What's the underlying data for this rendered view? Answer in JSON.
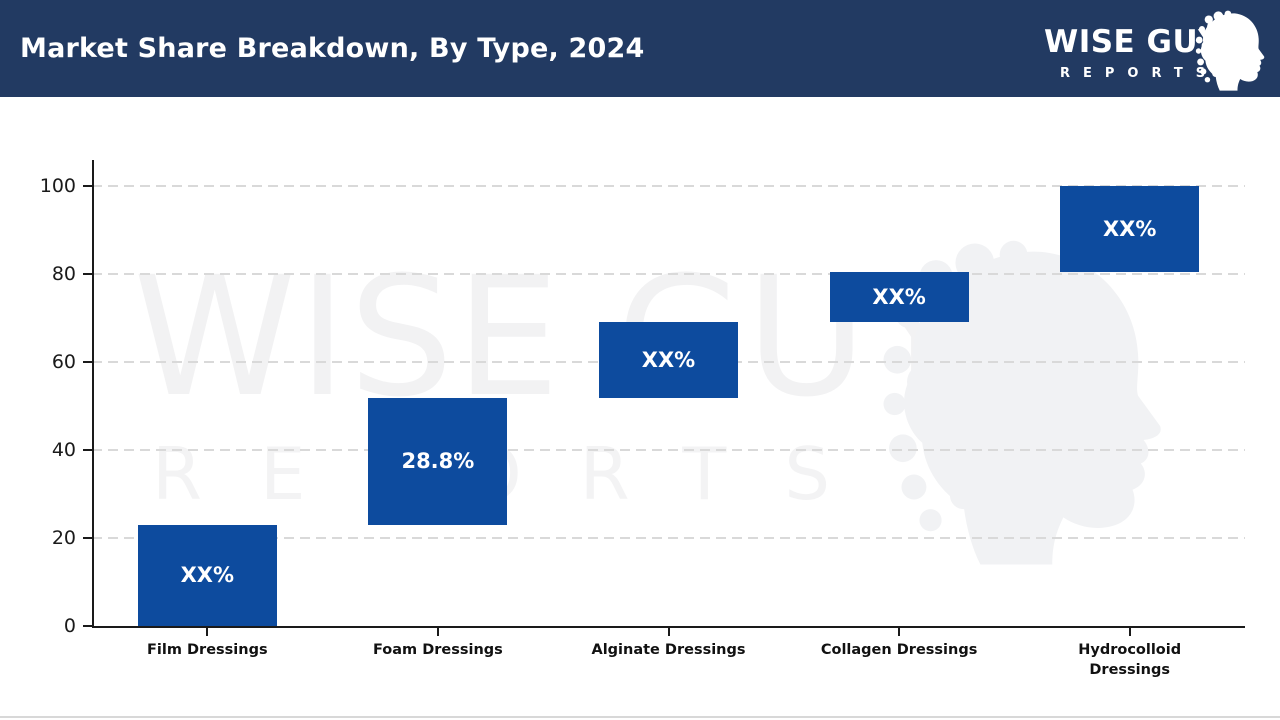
{
  "header": {
    "bg_color": "#223A62",
    "logo": {
      "wordmark": "WISE GUY",
      "subtext": "REPORTS"
    }
  },
  "watermark": {
    "wordmark": "WISE GUY",
    "subtext": "REPORTS"
  },
  "chart_data": {
    "type": "bar",
    "variant": "waterfall",
    "title": "Market Share Breakdown, By Type, 2024",
    "categories": [
      "Film Dressings",
      "Foam Dressings",
      "Alginate Dressings",
      "Collagen Dressings",
      "Hydrocolloid Dressings"
    ],
    "tick_labels": [
      "Film Dressings",
      "Foam Dressings",
      "Alginate Dressings",
      "Collagen Dressings",
      "Hydrocolloid\nDressings"
    ],
    "bars": [
      {
        "category": "Film Dressings",
        "start": 0,
        "end": 23,
        "label": "XX%"
      },
      {
        "category": "Foam Dressings",
        "start": 23,
        "end": 51.8,
        "label": "28.8%"
      },
      {
        "category": "Alginate Dressings",
        "start": 51.8,
        "end": 69,
        "label": "XX%"
      },
      {
        "category": "Collagen Dressings",
        "start": 69,
        "end": 80.5,
        "label": "XX%"
      },
      {
        "category": "Hydrocolloid Dressings",
        "start": 80.5,
        "end": 100,
        "label": "XX%"
      }
    ],
    "xlabel": "",
    "ylabel": "",
    "ylim": [
      0,
      100
    ],
    "yticks": [
      0,
      20,
      40,
      60,
      80,
      100
    ],
    "grid": "horizontal-dashed",
    "legend": "none",
    "bar_color": "#0D4B9E",
    "bar_label_color": "#FFFFFF",
    "axis_color": "#1A1A1A",
    "grid_color": "#D9D9D9"
  }
}
